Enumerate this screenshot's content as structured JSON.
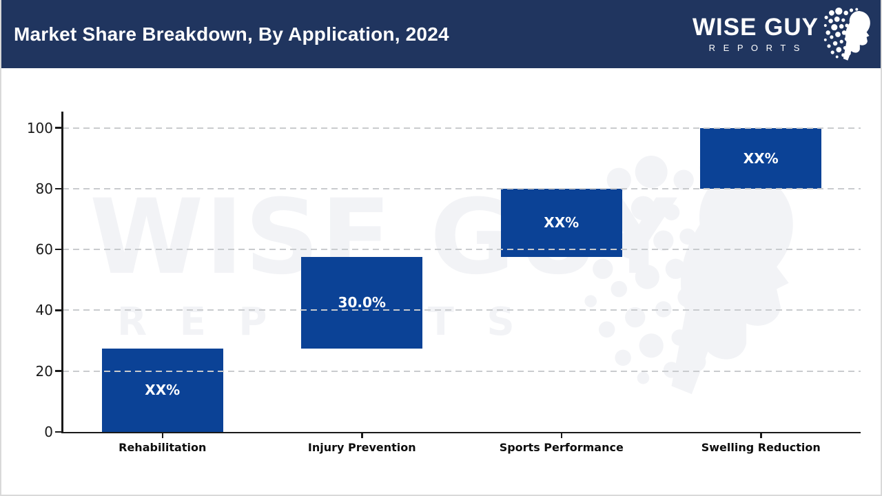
{
  "header": {
    "title": "Market Share Breakdown, By Application, 2024",
    "logo": {
      "name": "WISE GUY",
      "tagline": "R E P O R T S"
    }
  },
  "watermark": {
    "name": "WISE GUY",
    "tagline": "R E P O R T S"
  },
  "colors": {
    "header_bg": "#20355f",
    "bar": "#0b4296",
    "bar_label": "#ffffff",
    "axis": "#1a1a1a",
    "gridline": "#c9cbce",
    "watermark": "#f2f3f6"
  },
  "chart_data": {
    "type": "bar",
    "subtype": "floating-segment-waterfall",
    "title": "Market Share Breakdown, By Application, 2024",
    "categories": [
      "Rehabilitation",
      "Injury Prevention",
      "Sports Performance",
      "Swelling Reduction"
    ],
    "segments": [
      {
        "category": "Rehabilitation",
        "from": 0,
        "to": 27.5,
        "label": "XX%"
      },
      {
        "category": "Injury Prevention",
        "from": 27.5,
        "to": 57.5,
        "label": "30.0%"
      },
      {
        "category": "Sports Performance",
        "from": 57.5,
        "to": 80,
        "label": "XX%"
      },
      {
        "category": "Swelling Reduction",
        "from": 80,
        "to": 100,
        "label": "XX%"
      }
    ],
    "xlabel": "",
    "ylabel": "",
    "ylim": [
      0,
      100
    ],
    "yticks": [
      0,
      20,
      40,
      60,
      80,
      100
    ],
    "grid": "horizontal dashed gridlines drawn over bars",
    "legend": "none",
    "bar_color": "#0b4296",
    "value_label_color": "#ffffff"
  }
}
